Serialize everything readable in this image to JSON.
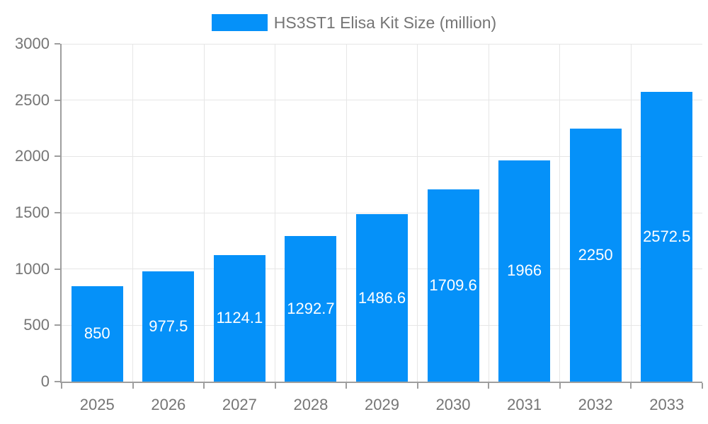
{
  "chart_data": {
    "type": "bar",
    "title": "HS3ST1 Elisa Kit Size (million)",
    "categories": [
      "2025",
      "2026",
      "2027",
      "2028",
      "2029",
      "2030",
      "2031",
      "2032",
      "2033"
    ],
    "values": [
      850,
      977.5,
      1124.1,
      1292.7,
      1486.6,
      1709.6,
      1966,
      2250,
      2572.5
    ],
    "value_labels": [
      "850",
      "977.5",
      "1124.1",
      "1292.7",
      "1486.6",
      "1709.6",
      "1966",
      "2250",
      "2572.5"
    ],
    "xlabel": "",
    "ylabel": "",
    "ylim": [
      0,
      3000
    ],
    "ytick_step": 500,
    "ytick_labels": [
      "0",
      "500",
      "1000",
      "1500",
      "2000",
      "2500",
      "3000"
    ],
    "grid": true,
    "legend_position": "top-center",
    "colors": {
      "bar": "#0591f9",
      "axis": "#9e9e9e",
      "grid": "#e6e6e6",
      "text": "#757575",
      "value_label": "#ffffff"
    }
  }
}
